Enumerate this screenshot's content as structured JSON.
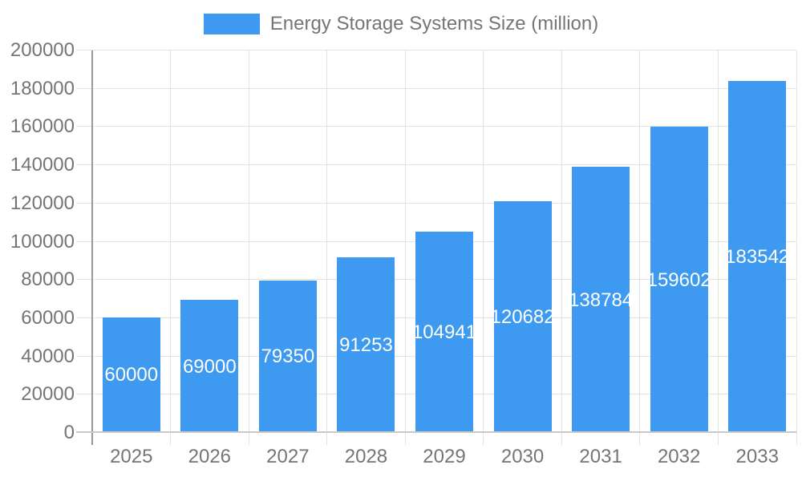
{
  "legend": {
    "label": "Energy Storage Systems Size (million)",
    "swatch_color": "#3D9AF0"
  },
  "chart_data": {
    "type": "bar",
    "title": "Energy Storage Systems Size (million)",
    "categories": [
      "2025",
      "2026",
      "2027",
      "2028",
      "2029",
      "2030",
      "2031",
      "2032",
      "2033"
    ],
    "values": [
      60000,
      69000,
      79350,
      91253,
      104941,
      120682,
      138784,
      159602,
      183542
    ],
    "value_labels": [
      "60000",
      "69000",
      "79350",
      "91253",
      "104941",
      "120682",
      "138784",
      "159602",
      "183542"
    ],
    "xlabel": "",
    "ylabel": "",
    "ylim": [
      0,
      200000
    ],
    "yticks": [
      0,
      20000,
      40000,
      60000,
      80000,
      100000,
      120000,
      140000,
      160000,
      180000,
      200000
    ],
    "grid": true,
    "legend_position": "top-center",
    "colors": {
      "bar": "#3D9AF0",
      "value_label": "#FFFFFF",
      "axis_text": "#757575",
      "gridline": "#E3E3E3",
      "baseline": "#C9C9C9",
      "axis_line": "#999999"
    }
  }
}
